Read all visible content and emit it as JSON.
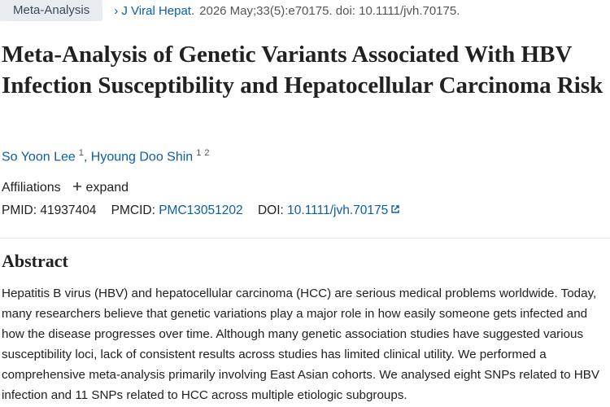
{
  "header": {
    "badge": "Meta-Analysis",
    "journal": "J Viral Hepat.",
    "citation": "2026 May;33(5):e70175. doi: 10.1111/jvh.70175."
  },
  "title": "Meta-Analysis of Genetic Variants Associated With HBV Infection Susceptibility and Hepatocellular Carcinoma Risk",
  "authors": [
    {
      "name": "So Yoon Lee",
      "affiliations": [
        "1"
      ]
    },
    {
      "name": "Hyoung Doo Shin",
      "affiliations": [
        "1",
        "2"
      ]
    }
  ],
  "affiliations": {
    "label": "Affiliations",
    "toggle": "expand"
  },
  "identifiers": {
    "pmid_label": "PMID:",
    "pmid": "41937404",
    "pmcid_label": "PMCID:",
    "pmcid": "PMC13051202",
    "doi_label": "DOI:",
    "doi": "10.1111/jvh.70175"
  },
  "abstract": {
    "heading": "Abstract",
    "text": "Hepatitis B virus (HBV) and hepatocellular carcinoma (HCC) are serious medical problems worldwide. Today, many researchers believe that genetic variations play a major role in how easily someone gets infected and how the disease progresses over time. Although many genetic association studies have suggested various susceptibility loci, lack of consistent results across studies has limited clinical utility. We performed a comprehensive meta-analysis primarily involving East Asian cohorts. We analysed eight SNPs related to HBV infection and 11 SNPs related to HCC across multiple etiologic subgroups."
  }
}
